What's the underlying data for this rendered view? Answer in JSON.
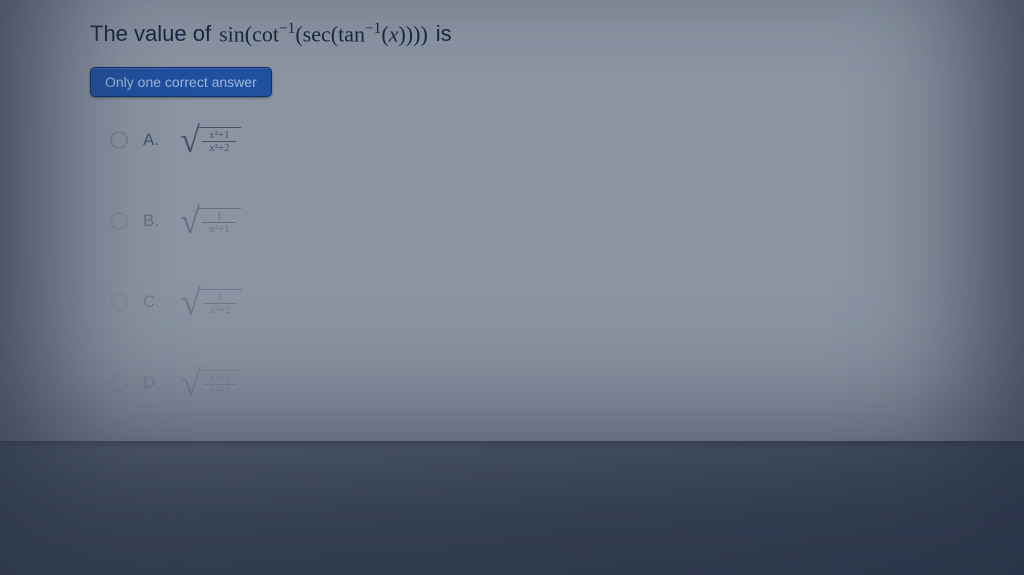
{
  "question": {
    "prefix": "The value of ",
    "math_expr": "sin(cot<sup>−1</sup>(sec(tan<sup>−1</sup>(x))))",
    "suffix": " is"
  },
  "instruction": {
    "label": "Only one correct answer",
    "bg_color": "#2050a0",
    "text_color": "#a0b8d8"
  },
  "options": [
    {
      "letter": "A.",
      "numerator": "x²+1",
      "denominator": "x²+2",
      "opacity_class": ""
    },
    {
      "letter": "B.",
      "numerator": "1",
      "denominator": "x²+1",
      "opacity_class": "faded-1"
    },
    {
      "letter": "C.",
      "numerator": "1",
      "denominator": "x²+2",
      "opacity_class": "faded-2"
    },
    {
      "letter": "D.",
      "numerator": "x²+2",
      "denominator": "x²+1",
      "opacity_class": "faded-3"
    }
  ],
  "styling": {
    "page_bg": "#8b95a3",
    "text_color": "#1a2740",
    "option_text_color": "#465468",
    "radio_border": "#7a8290",
    "question_fontsize": 22,
    "option_fontsize": 17
  }
}
